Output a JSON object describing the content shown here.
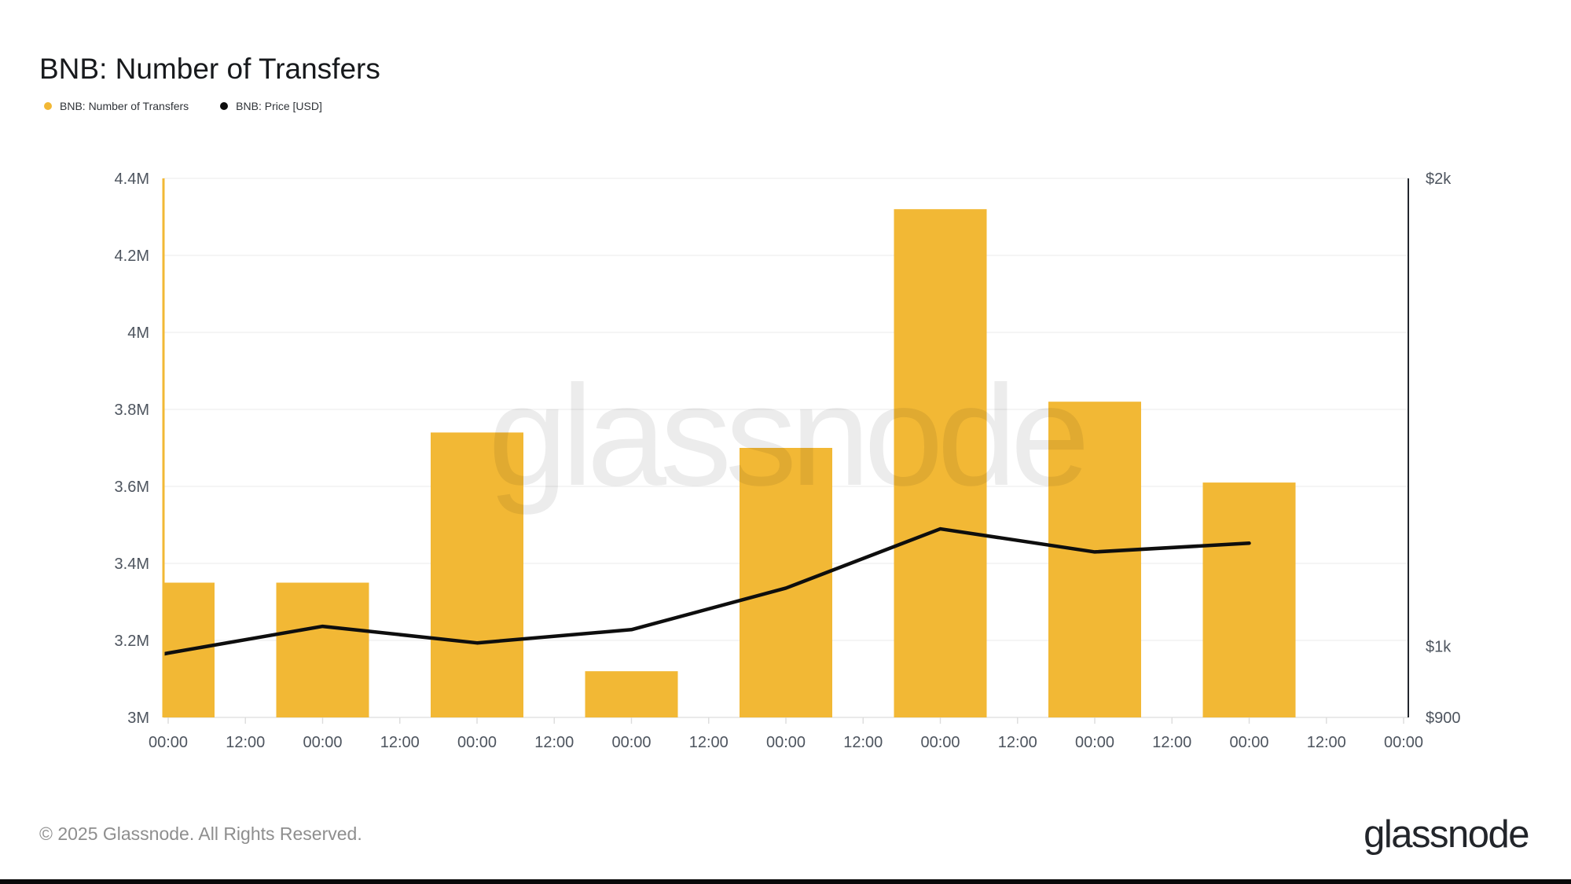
{
  "header": {
    "title": "BNB: Number of Transfers"
  },
  "legend": {
    "items": [
      {
        "label": "BNB: Number of Transfers",
        "color": "#F2B835"
      },
      {
        "label": "BNB: Price [USD]",
        "color": "#0E0E0E"
      }
    ]
  },
  "watermark": {
    "text": "glassnode",
    "color": "rgba(0,0,0,0.075)"
  },
  "footer": {
    "copyright": "© 2025 Glassnode. All Rights Reserved.",
    "logo": "glassnode"
  },
  "chart_data": {
    "type": "bar+line",
    "title": "BNB: Number of Transfers",
    "legend_position": "top-left",
    "grid": "horizontal-only",
    "x_axis": {
      "tick_labels": [
        "00:00",
        "12:00",
        "00:00",
        "12:00",
        "00:00",
        "12:00",
        "00:00",
        "12:00",
        "00:00",
        "12:00",
        "00:00",
        "12:00",
        "00:00",
        "12:00",
        "00:00",
        "12:00",
        "00:00"
      ],
      "note": "8 daily bars, one per 00:00 tick; first bar clipped by left axis"
    },
    "left_y_axis": {
      "series": "BNB: Number of Transfers",
      "tick_labels": [
        "4.4M",
        "4.2M",
        "4M",
        "3.8M",
        "3.6M",
        "3.4M",
        "3.2M",
        "3M"
      ],
      "min": 3000000,
      "max": 4400000,
      "scale": "linear",
      "axis_line_color": "#F2B835",
      "label_color": "#4d545e"
    },
    "right_y_axis": {
      "series": "BNB: Price [USD]",
      "tick_labels": [
        "$2k",
        "$1k",
        "$900"
      ],
      "tick_values": [
        2000,
        1000,
        900
      ],
      "min": 900,
      "max": 2000,
      "scale": "log",
      "axis_line_color": "#23272e",
      "label_color": "#4d545e"
    },
    "series": [
      {
        "name": "BNB: Number of Transfers",
        "type": "bar",
        "axis": "left",
        "color": "#F2B835",
        "values": [
          3350000,
          3350000,
          3740000,
          3120000,
          3700000,
          4320000,
          3820000,
          3610000
        ]
      },
      {
        "name": "BNB: Price [USD]",
        "type": "line",
        "axis": "right",
        "color": "#0E0E0E",
        "values": [
          990,
          1030,
          1005,
          1025,
          1090,
          1190,
          1150,
          1165
        ]
      }
    ]
  }
}
